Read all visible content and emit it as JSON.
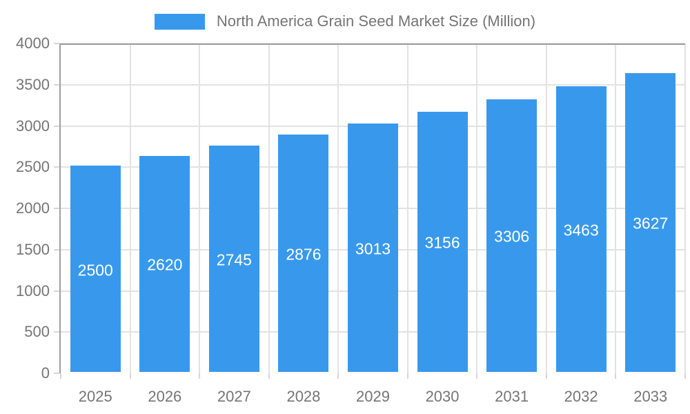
{
  "chart_data": {
    "type": "bar",
    "title": "North America Grain Seed Market Size (Million)",
    "categories": [
      "2025",
      "2026",
      "2027",
      "2028",
      "2029",
      "2030",
      "2031",
      "2032",
      "2033"
    ],
    "values": [
      2500,
      2620,
      2745,
      2876,
      3013,
      3156,
      3306,
      3463,
      3627
    ],
    "xlabel": "",
    "ylabel": "",
    "ylim": [
      0,
      4000
    ],
    "y_ticks": [
      "0",
      "500",
      "1000",
      "1500",
      "2000",
      "2500",
      "3000",
      "3500",
      "4000"
    ],
    "grid": "on",
    "legend_position": "top",
    "colors": {
      "bar": "#3899EC",
      "grid": "#E2E2E2",
      "axis": "#9E9E9E",
      "tick": "#D6D6D6",
      "text": "#757575",
      "value_text": "#FFFFFF",
      "background": "#FFFFFF"
    }
  }
}
